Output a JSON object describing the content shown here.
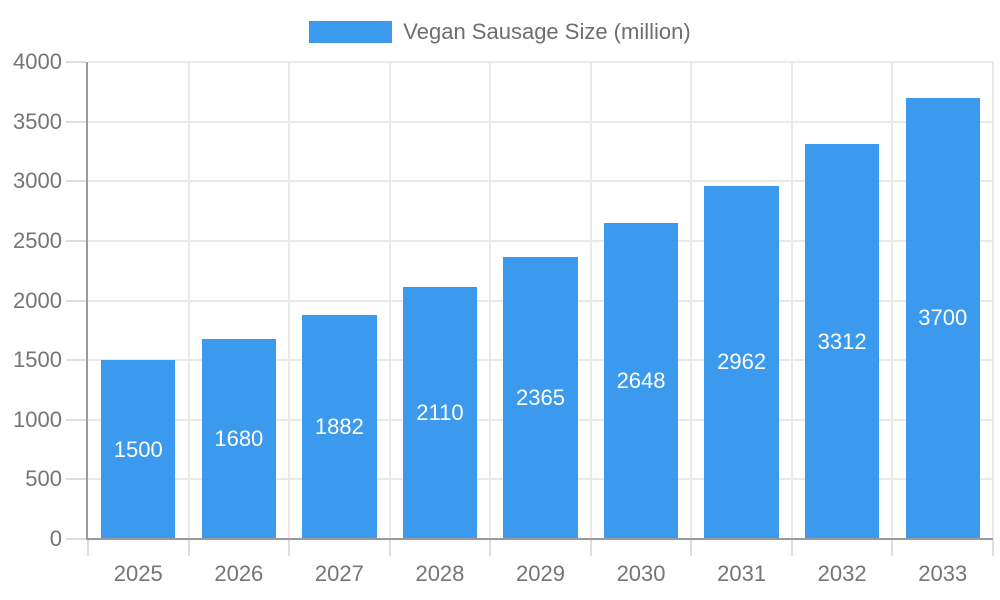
{
  "colors": {
    "bar": "#3B99EE",
    "axis_line": "#9A9A9A",
    "gridline": "#E9E9E9",
    "tick_mark": "#DEDEDE",
    "axis_label": "#757575",
    "legend_label": "#6E6E6E",
    "bar_value_label": "#FFFFFF",
    "background": "#FFFFFF"
  },
  "chart_data": {
    "type": "bar",
    "title": "Vegan Sausage Size (million)",
    "legend_entries": [
      "Vegan Sausage Size (million)"
    ],
    "legend_position": "top",
    "categories": [
      "2025",
      "2026",
      "2027",
      "2028",
      "2029",
      "2030",
      "2031",
      "2032",
      "2033"
    ],
    "series": [
      {
        "name": "Vegan Sausage Size (million)",
        "values": [
          1500,
          1680,
          1882,
          2110,
          2365,
          2648,
          2962,
          3312,
          3700
        ]
      }
    ],
    "bar_value_labels": [
      "1500",
      "1680",
      "1882",
      "2110",
      "2365",
      "2648",
      "2962",
      "3312",
      "3700"
    ],
    "bar_value_label_placement": "inside-center",
    "xlabel": "",
    "ylabel": "",
    "ylim": [
      0,
      4000
    ],
    "ytick_step": 500,
    "ytick_labels": [
      "0",
      "500",
      "1000",
      "1500",
      "2000",
      "2500",
      "3000",
      "3500",
      "4000"
    ],
    "grid": true
  }
}
